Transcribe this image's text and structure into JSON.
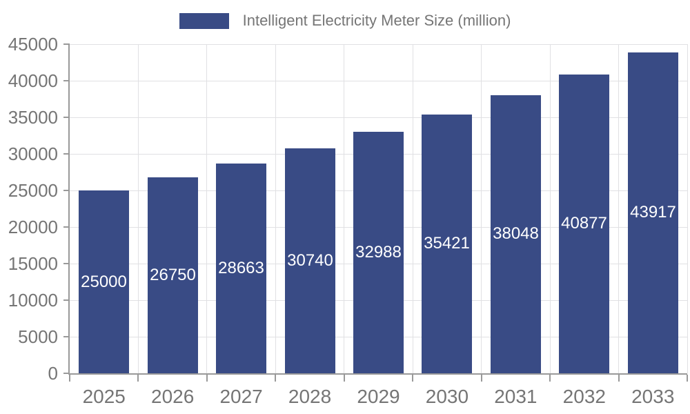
{
  "legend": {
    "label": "Intelligent Electricity Meter Size (million)"
  },
  "chart_data": {
    "type": "bar",
    "title": "Intelligent Electricity Meter Size (million)",
    "series_name": "Intelligent Electricity Meter Size (million)",
    "categories": [
      "2025",
      "2026",
      "2027",
      "2028",
      "2029",
      "2030",
      "2031",
      "2032",
      "2033"
    ],
    "values": [
      25000,
      26750,
      28663,
      30740,
      32988,
      35421,
      38048,
      40877,
      43917
    ],
    "xlabel": "",
    "ylabel": "",
    "ylim": [
      0,
      45000
    ],
    "yticks": [
      0,
      5000,
      10000,
      15000,
      20000,
      25000,
      30000,
      35000,
      40000,
      45000
    ],
    "grid": true,
    "legend_position": "top-center",
    "value_label_position": "inside-middle",
    "colors": {
      "bar": "#394B85",
      "value_label": "#FFFFFF",
      "axis_line": "#999999",
      "grid_line": "#E0E0E3",
      "tick_text": "#757575",
      "legend_text": "#757575",
      "background": "#FFFFFF"
    }
  }
}
